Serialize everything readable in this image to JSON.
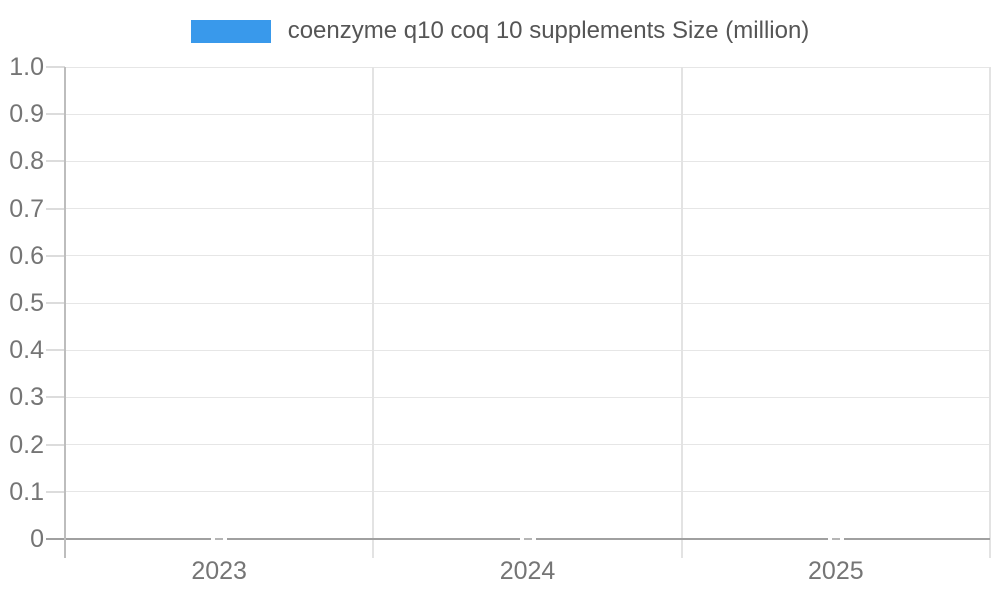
{
  "chart_data": {
    "type": "bar",
    "categories": [
      "2023",
      "2024",
      "2025"
    ],
    "series": [
      {
        "name": "coenzyme q10 coq 10 supplements Size (million)",
        "values": [
          0,
          0,
          0
        ],
        "color": "#3999EB"
      }
    ],
    "title": "",
    "xlabel": "",
    "ylabel": "",
    "ylim": [
      0,
      1
    ],
    "y_ticks": [
      "1.0",
      "0.9",
      "0.8",
      "0.7",
      "0.6",
      "0.5",
      "0.4",
      "0.3",
      "0.2",
      "0.1",
      "0"
    ],
    "grid": true,
    "legend_position": "top-center"
  },
  "legend": {
    "swatch_color": "#3999EB"
  },
  "colors": {
    "background": "#ffffff",
    "series_blue": "#3999EB",
    "h_gridline": "#e6e6e6",
    "v_gridline": "#e3e3e3",
    "y_axis_line": "#bdbdbd",
    "x_baseline": "#a0a0a0",
    "axis_tick": "#dcdcdc",
    "axis_label_text": "#757575",
    "legend_text": "#555555",
    "zero_bar_dash": "#b5b5b5"
  }
}
